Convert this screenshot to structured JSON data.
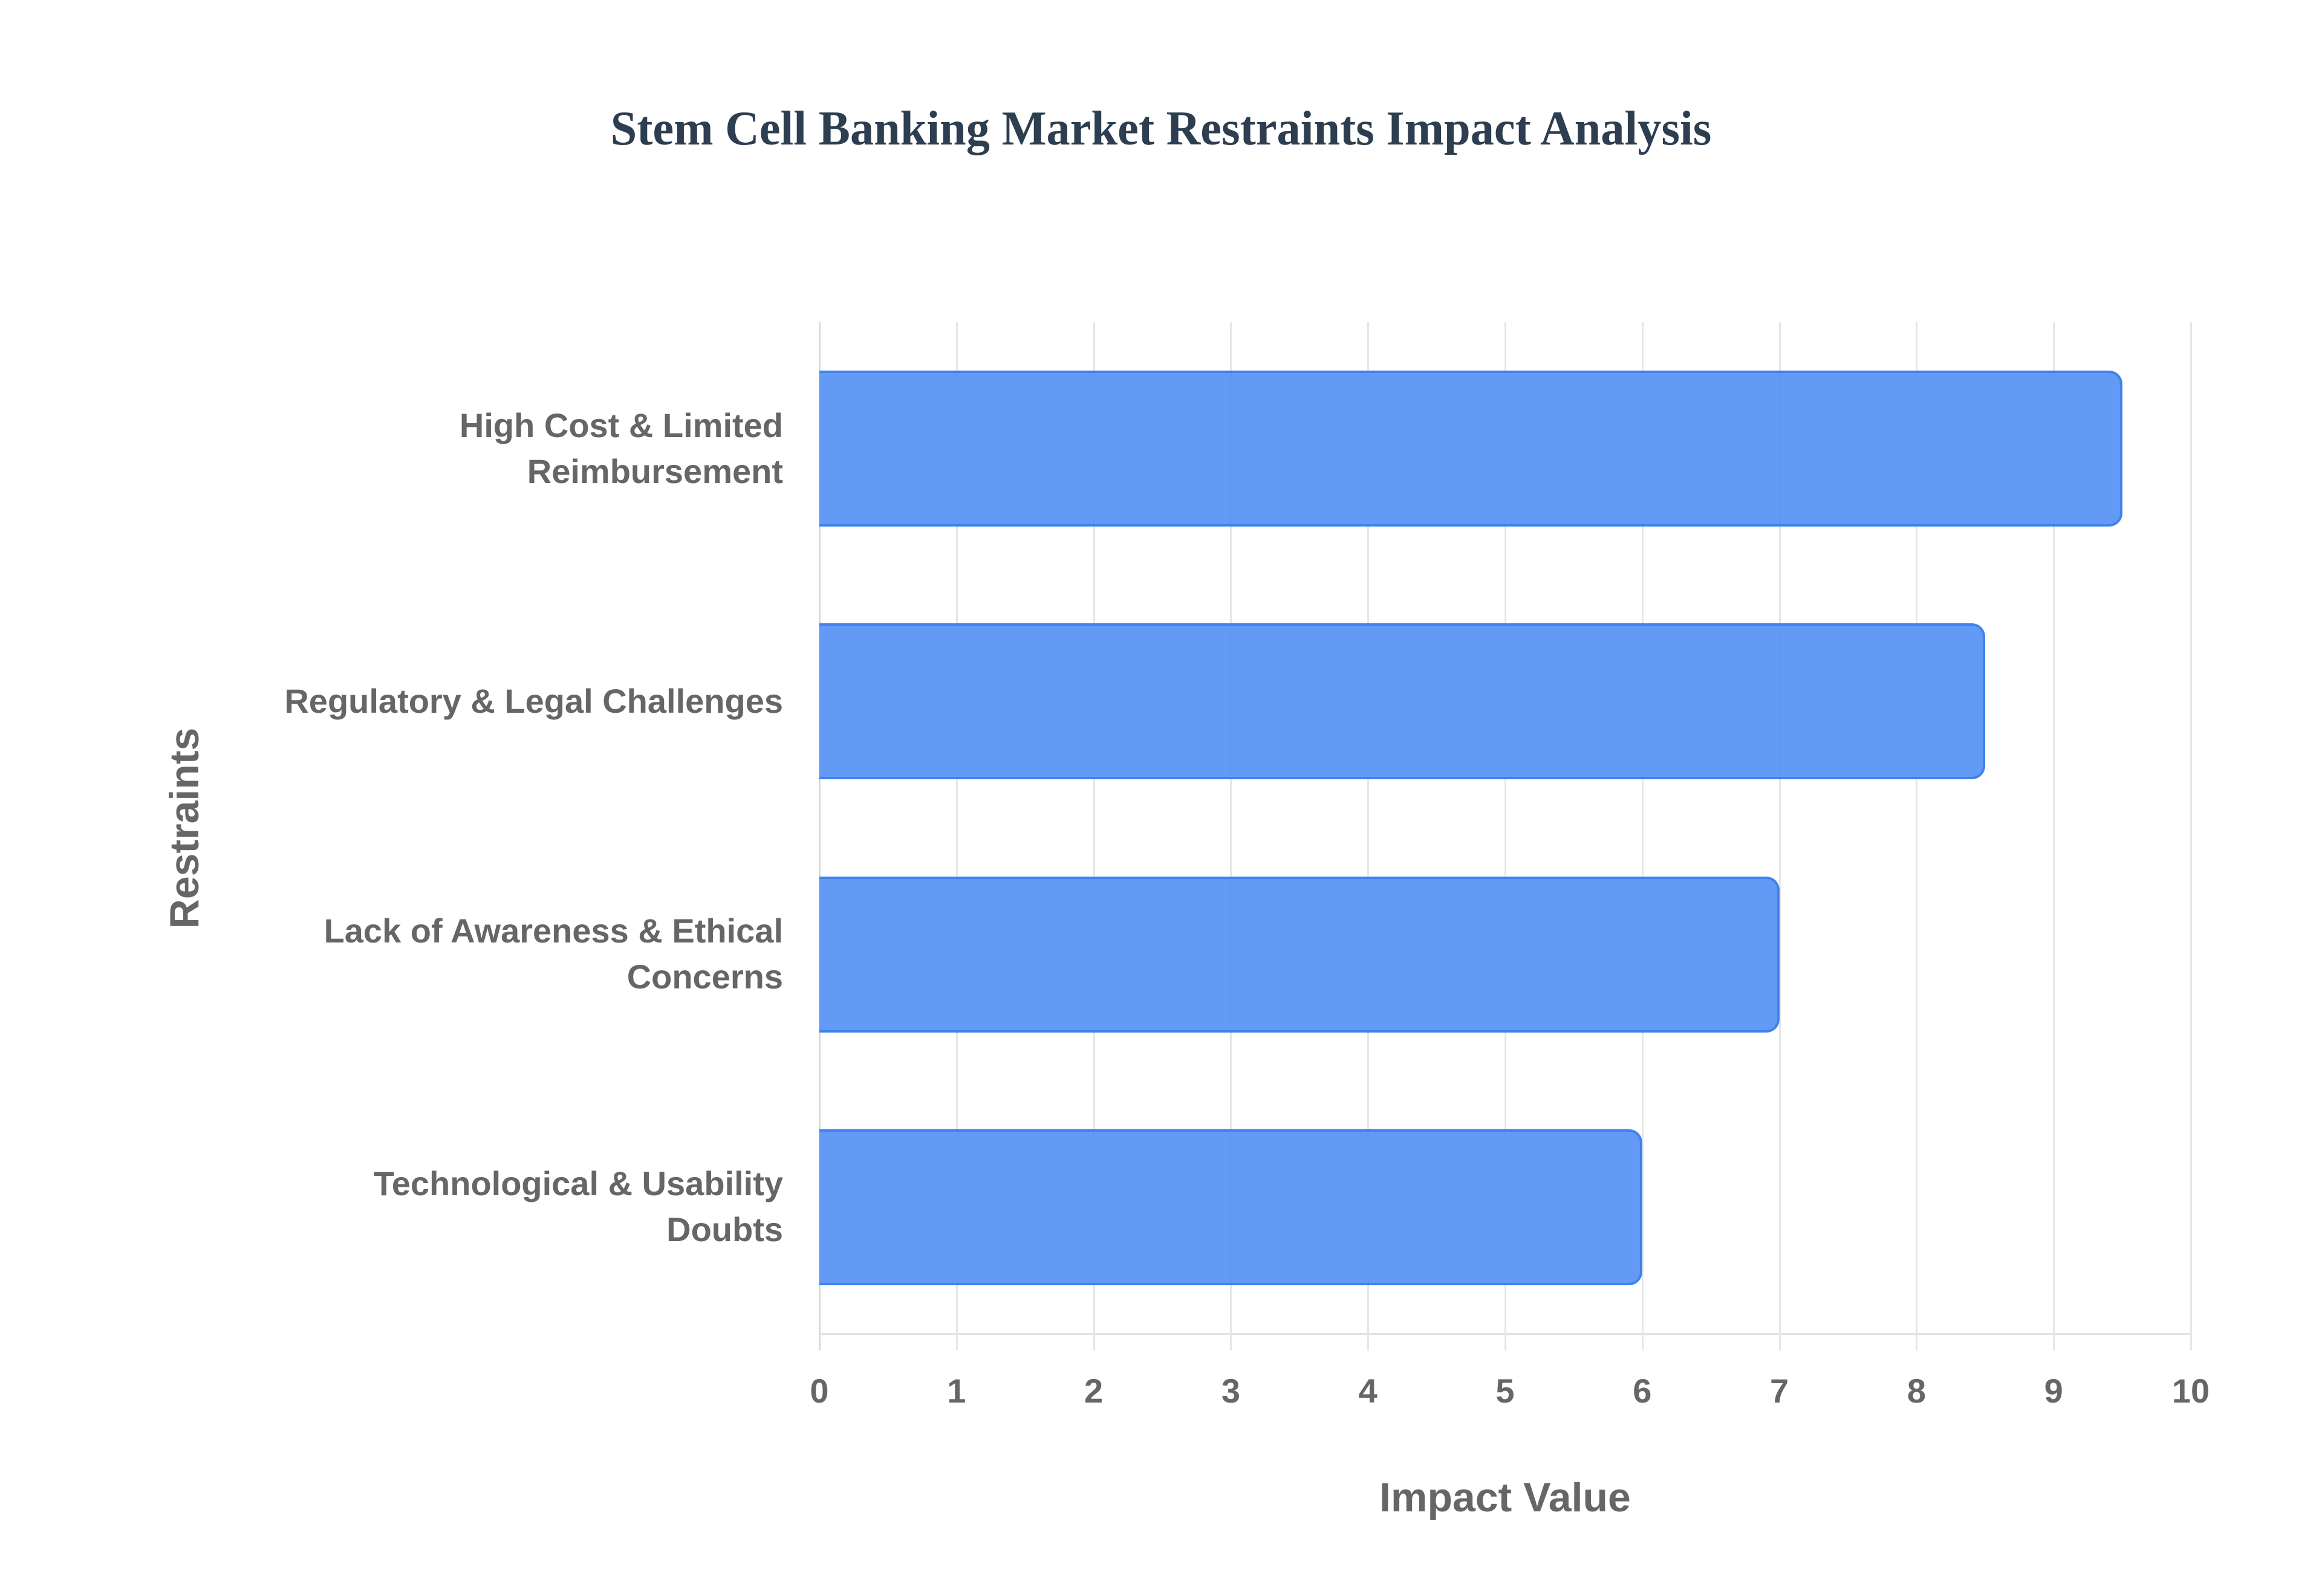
{
  "chart": {
    "title": "Stem Cell Banking Market Restraints Impact Analysis",
    "x_title": "Impact Value",
    "y_title": "Restraints",
    "x_ticks": [
      "0",
      "1",
      "2",
      "3",
      "4",
      "5",
      "6",
      "7",
      "8",
      "9",
      "10"
    ],
    "bar_color": "#5b96f5",
    "bar_border_color": "#3f82ee",
    "categories": [
      {
        "line1": "High Cost & Limited",
        "line2": "Reimbursement"
      },
      {
        "line1": "Regulatory & Legal Challenges",
        "line2": ""
      },
      {
        "line1": "Lack of Awareness & Ethical",
        "line2": "Concerns"
      },
      {
        "line1": "Technological & Usability",
        "line2": "Doubts"
      }
    ]
  },
  "chart_data": {
    "type": "bar",
    "orientation": "horizontal",
    "title": "Stem Cell Banking Market Restraints Impact Analysis",
    "xlabel": "Impact Value",
    "ylabel": "Restraints",
    "categories": [
      "High Cost & Limited Reimbursement",
      "Regulatory & Legal Challenges",
      "Lack of Awareness & Ethical Concerns",
      "Technological & Usability Doubts"
    ],
    "values": [
      9.5,
      8.5,
      7,
      6
    ],
    "xlim": [
      0,
      10
    ],
    "x_ticks": [
      0,
      1,
      2,
      3,
      4,
      5,
      6,
      7,
      8,
      9,
      10
    ],
    "grid": true,
    "legend": "none"
  }
}
